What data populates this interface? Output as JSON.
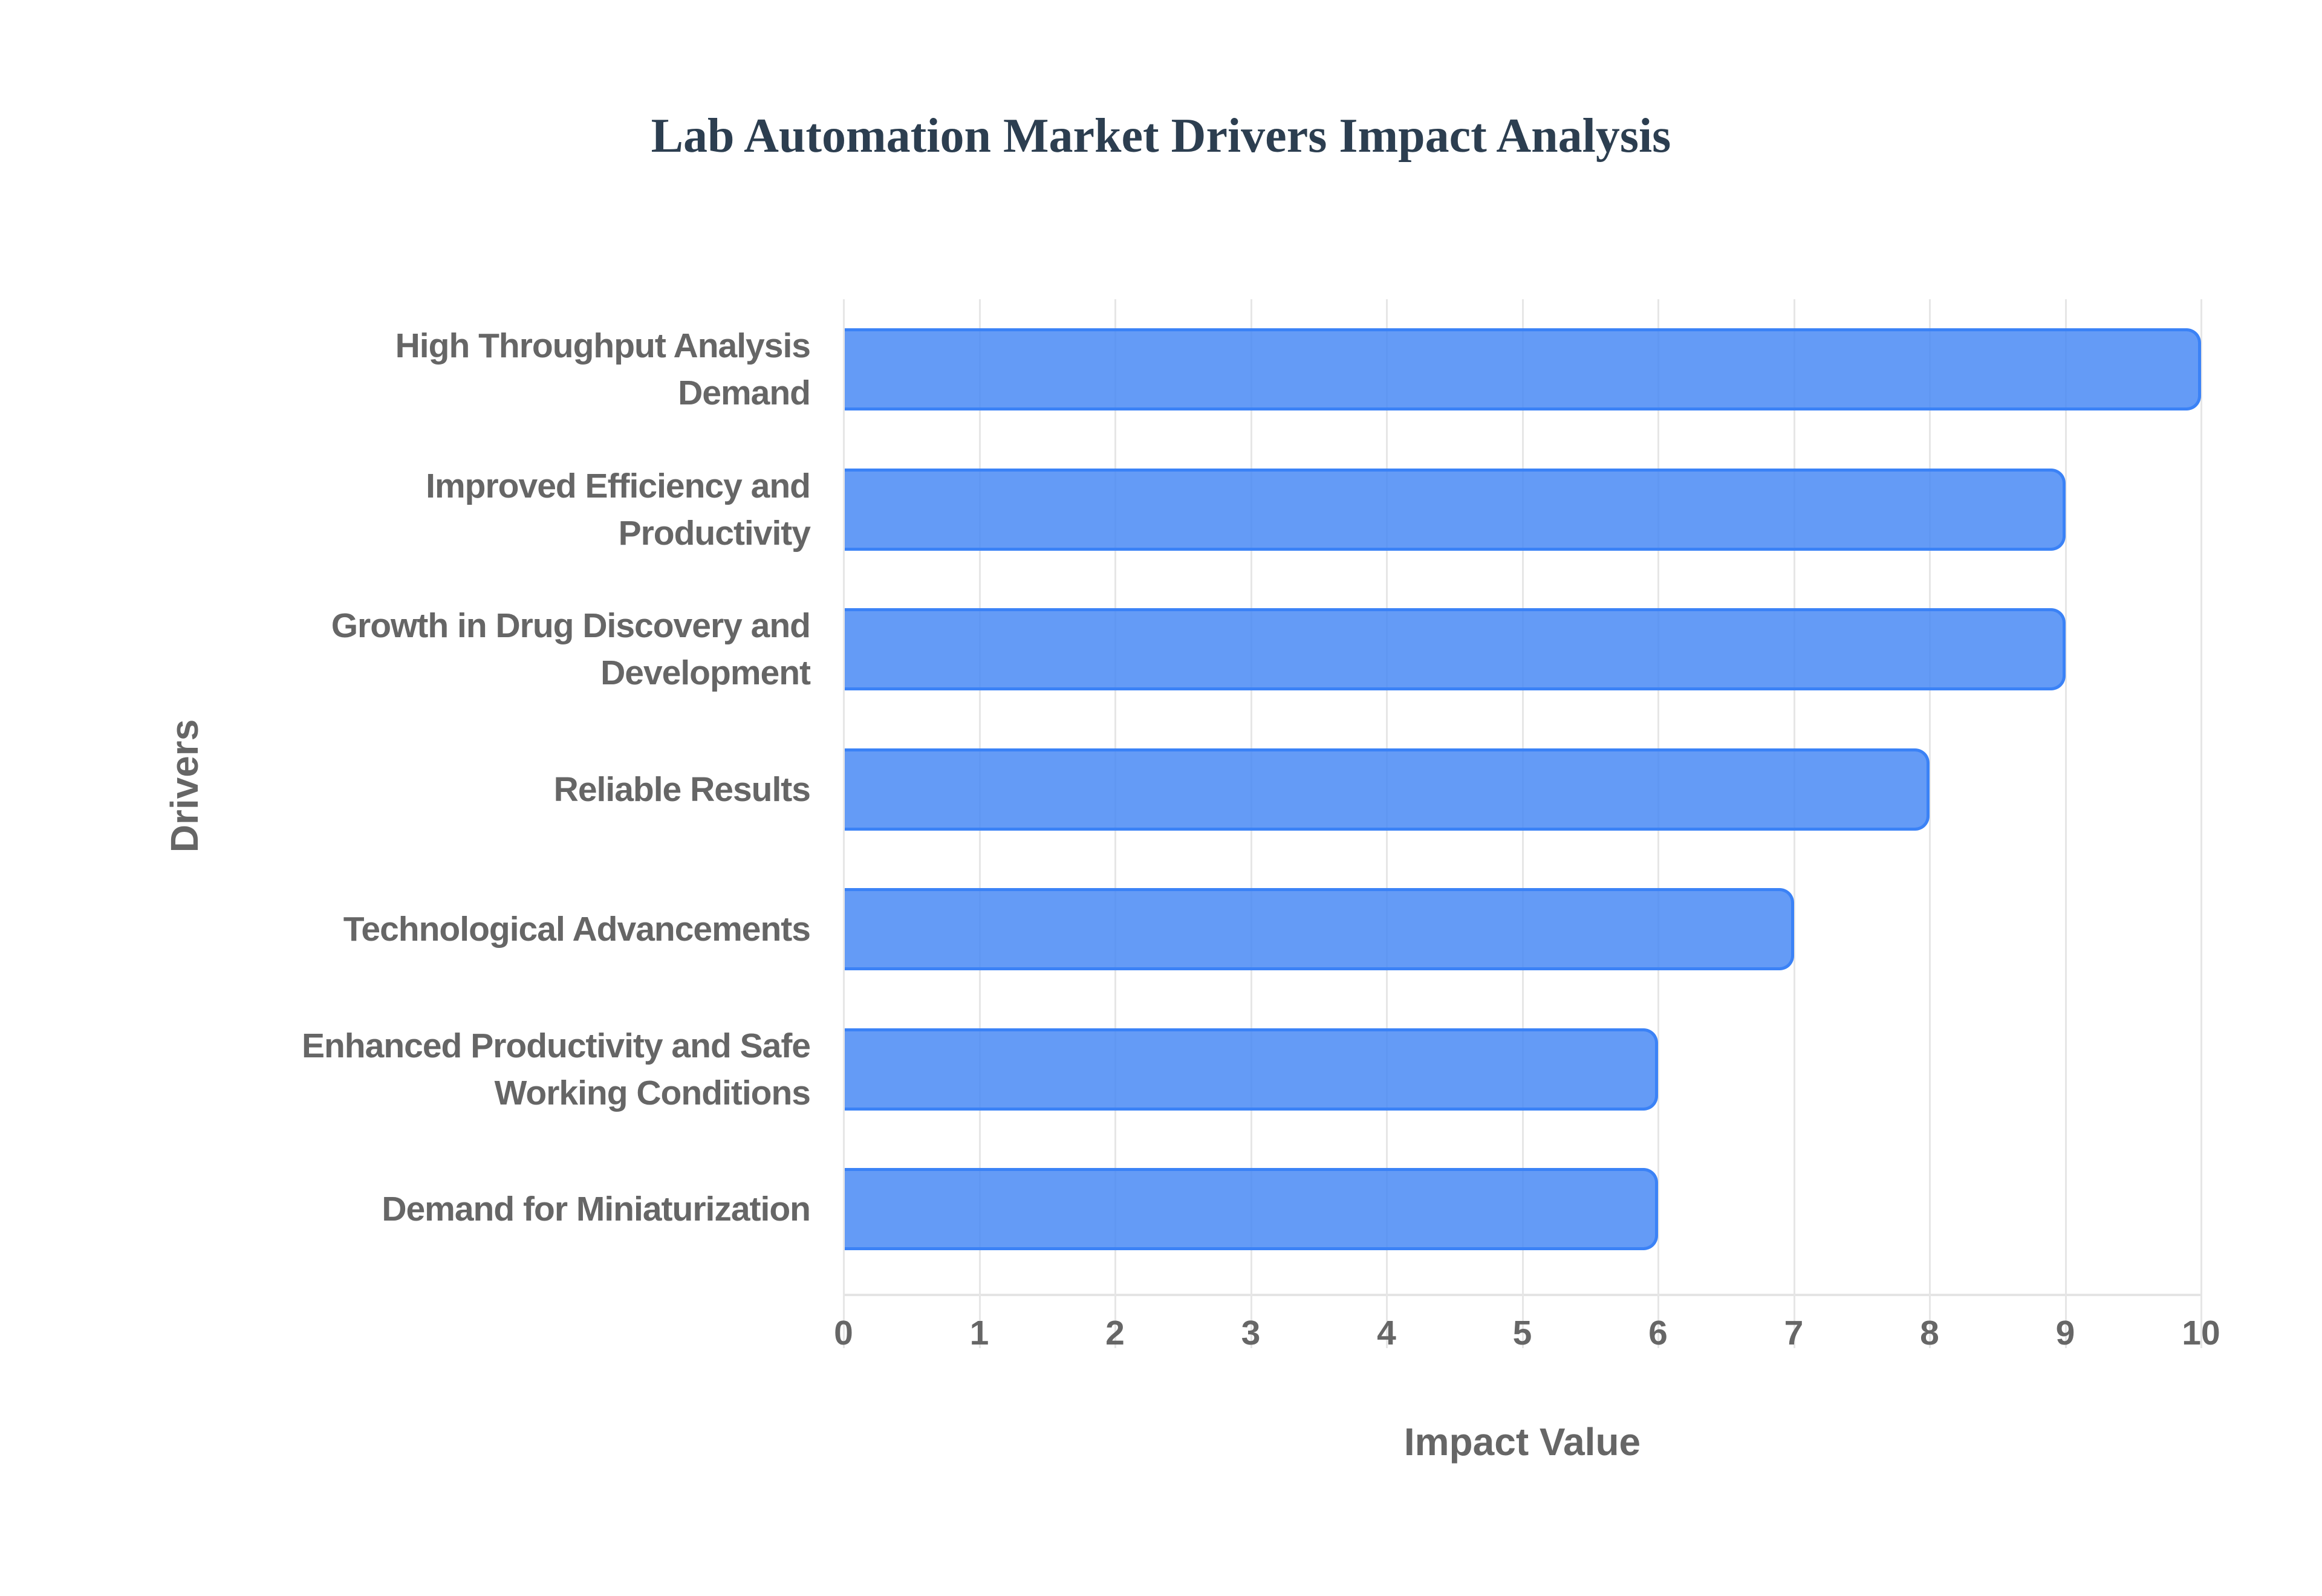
{
  "chart": {
    "title": "Lab Automation Market Drivers Impact Analysis",
    "x_axis_title": "Impact Value",
    "y_axis_title": "Drivers",
    "ticks": [
      "0",
      "1",
      "2",
      "3",
      "4",
      "5",
      "6",
      "7",
      "8",
      "9",
      "10"
    ],
    "bar_color": "#4285f4",
    "bar_border_color": "#3b82f6",
    "title_color": "#2c3e50",
    "label_color": "#666666",
    "bars": [
      {
        "label_lines": [
          "High Throughput Analysis",
          "Demand"
        ],
        "value": 10
      },
      {
        "label_lines": [
          "Improved Efficiency and",
          "Productivity"
        ],
        "value": 9
      },
      {
        "label_lines": [
          "Growth in Drug Discovery and",
          "Development"
        ],
        "value": 9
      },
      {
        "label_lines": [
          "Reliable Results"
        ],
        "value": 8
      },
      {
        "label_lines": [
          "Technological Advancements"
        ],
        "value": 7
      },
      {
        "label_lines": [
          "Enhanced Productivity and Safe",
          "Working Conditions"
        ],
        "value": 6
      },
      {
        "label_lines": [
          "Demand for Miniaturization"
        ],
        "value": 6
      }
    ]
  },
  "chart_data": {
    "type": "bar",
    "orientation": "horizontal",
    "title": "Lab Automation Market Drivers Impact Analysis",
    "xlabel": "Impact Value",
    "ylabel": "Drivers",
    "categories": [
      "High Throughput Analysis Demand",
      "Improved Efficiency and Productivity",
      "Growth in Drug Discovery and Development",
      "Reliable Results",
      "Technological Advancements",
      "Enhanced Productivity and Safe Working Conditions",
      "Demand for Miniaturization"
    ],
    "values": [
      10,
      9,
      9,
      8,
      7,
      6,
      6
    ],
    "xlim": [
      0,
      10
    ],
    "xticks": [
      0,
      1,
      2,
      3,
      4,
      5,
      6,
      7,
      8,
      9,
      10
    ],
    "grid": true,
    "legend": "none",
    "colors": {
      "bar_fill": "#4285f4",
      "bar_border": "#3b82f6"
    }
  }
}
